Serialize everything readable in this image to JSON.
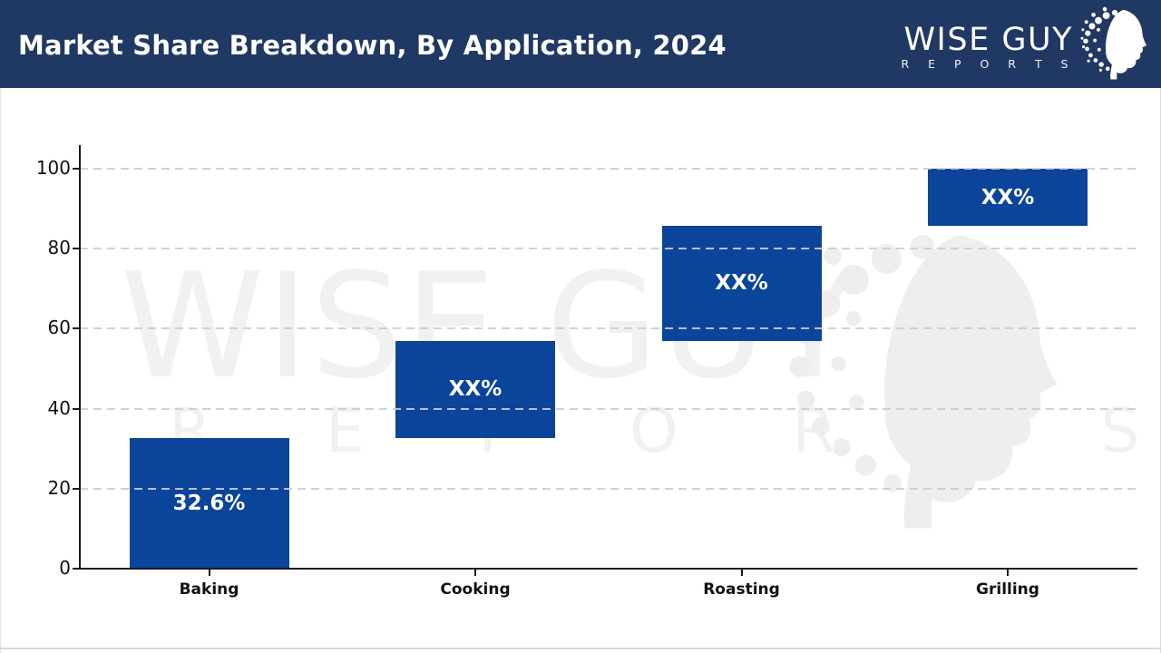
{
  "header": {
    "title": "Market Share Breakdown, By Application, 2024",
    "logo": {
      "brand": "WISE GUY",
      "subbrand": "R E P O R T S"
    }
  },
  "watermark": {
    "line1": "WISE GUY",
    "line2": "R E P O R T S"
  },
  "chart_data": {
    "type": "bar",
    "subtype": "waterfall",
    "title": "Market Share Breakdown, By Application, 2024",
    "categories": [
      "Baking",
      "Cooking",
      "Roasting",
      "Grilling"
    ],
    "series": [
      {
        "name": "Market Share",
        "segments": [
          {
            "category": "Baking",
            "start": 0,
            "end": 32.6,
            "label": "32.6%"
          },
          {
            "category": "Cooking",
            "start": 32.6,
            "end": 57.0,
            "label": "XX%"
          },
          {
            "category": "Roasting",
            "start": 57.0,
            "end": 85.7,
            "label": "XX%"
          },
          {
            "category": "Grilling",
            "start": 85.7,
            "end": 100.0,
            "label": "XX%"
          }
        ]
      }
    ],
    "xlabel": "",
    "ylabel": "",
    "ylim": [
      0,
      100
    ],
    "yticks": [
      0,
      20,
      40,
      60,
      80,
      100
    ],
    "grid": "horizontal-dashed",
    "legend": "none",
    "colors": {
      "bar": "#0a449b",
      "bar_label": "#ffffff",
      "axis": "#1a1a1a",
      "grid": "#d4d4d4"
    }
  },
  "colors": {
    "header_bg": "#203864",
    "page_bg": "#ffffff",
    "watermark": "#f1f1f1"
  }
}
